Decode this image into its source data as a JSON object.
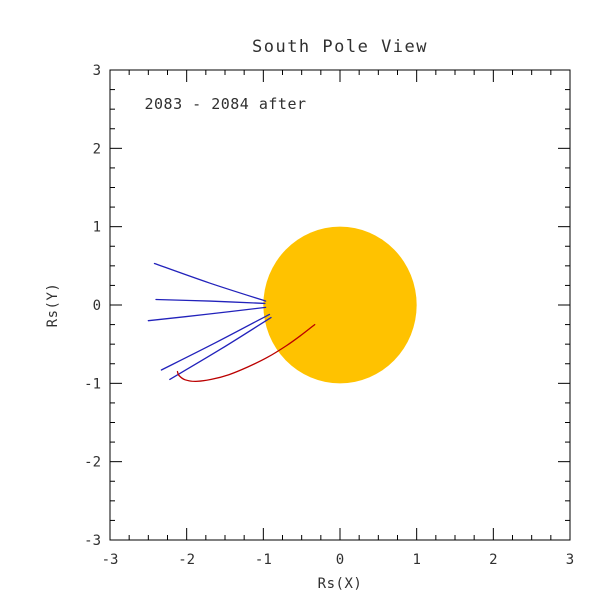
{
  "window": {
    "background_color": "#ffffff"
  },
  "chart_data": {
    "type": "line",
    "title": "South Pole View",
    "annotation": {
      "text": "2083 - 2084 after",
      "x": -2.55,
      "y": 2.5
    },
    "xlabel": "Rs(X)",
    "ylabel": "Rs(Y)",
    "xlim": [
      -3,
      3
    ],
    "ylim": [
      -3,
      3
    ],
    "xticks": [
      -3,
      -2,
      -1,
      0,
      1,
      2,
      3
    ],
    "xtick_labels": [
      "-3",
      "-2",
      "-1",
      "0",
      "1",
      "2",
      "3"
    ],
    "yticks": [
      -3,
      -2,
      -1,
      0,
      1,
      2,
      3
    ],
    "ytick_labels": [
      "-3",
      "-2",
      "-1",
      "0",
      "1",
      "2",
      "3"
    ],
    "minor_tick_step": 0.25,
    "grid": false,
    "axis_color": "#000000",
    "sun": {
      "cx": 0,
      "cy": 0,
      "r": 1,
      "color": "#FFC200"
    },
    "series": [
      {
        "name": "trajectory-blue-1",
        "color": "#2222BB",
        "width": 1.3,
        "points": [
          [
            -0.97,
            0.05
          ],
          [
            -1.7,
            0.28
          ],
          [
            -2.42,
            0.53
          ]
        ]
      },
      {
        "name": "trajectory-blue-2",
        "color": "#2222BB",
        "width": 1.3,
        "points": [
          [
            -0.98,
            0.02
          ],
          [
            -1.7,
            0.05
          ],
          [
            -2.4,
            0.07
          ]
        ]
      },
      {
        "name": "trajectory-blue-3",
        "color": "#2222BB",
        "width": 1.3,
        "points": [
          [
            -0.97,
            -0.03
          ],
          [
            -1.75,
            -0.12
          ],
          [
            -2.5,
            -0.2
          ]
        ]
      },
      {
        "name": "trajectory-blue-4",
        "color": "#2222BB",
        "width": 1.3,
        "points": [
          [
            -0.92,
            -0.12
          ],
          [
            -1.62,
            -0.48
          ],
          [
            -2.33,
            -0.83
          ]
        ]
      },
      {
        "name": "trajectory-blue-5",
        "color": "#2222BB",
        "width": 1.3,
        "points": [
          [
            -0.9,
            -0.16
          ],
          [
            -1.55,
            -0.56
          ],
          [
            -2.22,
            -0.95
          ]
        ]
      },
      {
        "name": "trajectory-red",
        "color": "#BB0000",
        "width": 1.3,
        "points": [
          [
            -0.33,
            -0.25
          ],
          [
            -0.5,
            -0.38
          ],
          [
            -0.7,
            -0.52
          ],
          [
            -0.95,
            -0.67
          ],
          [
            -1.2,
            -0.79
          ],
          [
            -1.45,
            -0.89
          ],
          [
            -1.68,
            -0.95
          ],
          [
            -1.88,
            -0.975
          ],
          [
            -2.02,
            -0.955
          ],
          [
            -2.1,
            -0.9
          ],
          [
            -2.12,
            -0.85
          ]
        ]
      }
    ]
  }
}
